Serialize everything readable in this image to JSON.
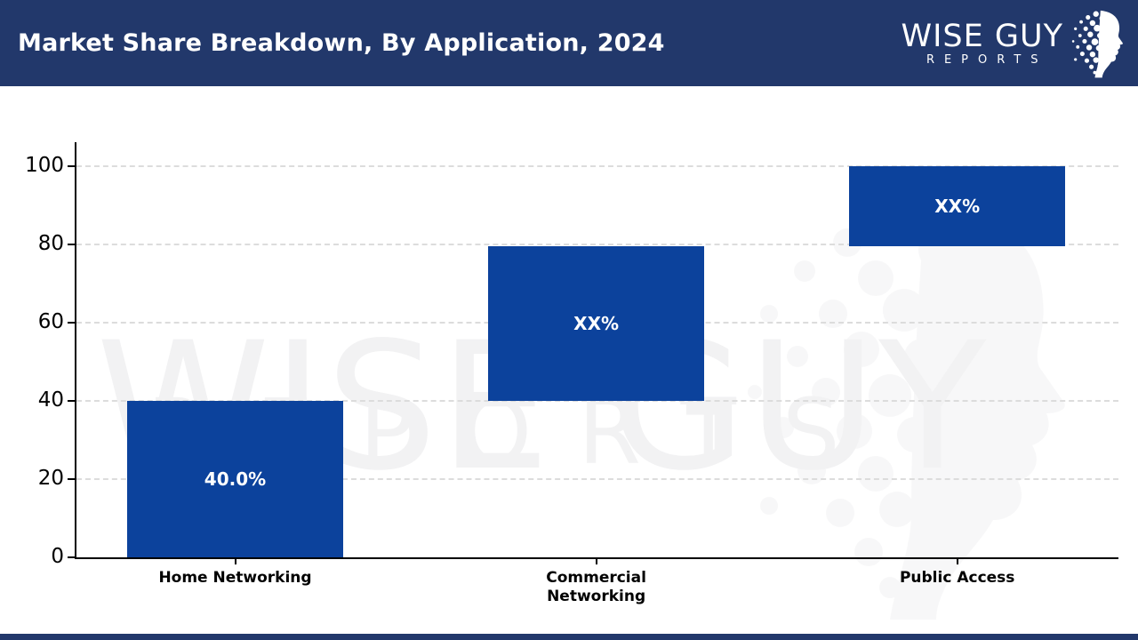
{
  "header": {
    "title": "Market Share Breakdown, By Application, 2024",
    "bg_color": "#22386b",
    "logo": {
      "line1": "WISE GUY",
      "line2": "REPORTS"
    }
  },
  "watermark": {
    "line1": "WISE GUY",
    "line2": "REPORTS"
  },
  "footer": {
    "bar_color": "#22386b"
  },
  "chart_data": {
    "type": "bar",
    "subtype": "waterfall",
    "title": "Market Share Breakdown, By Application, 2024",
    "categories": [
      "Home Networking",
      "Commercial Networking",
      "Public Access"
    ],
    "segments": [
      {
        "category": "Home Networking",
        "start": 0,
        "end": 40,
        "value_label": "40.0%"
      },
      {
        "category": "Commercial Networking",
        "start": 40,
        "end": 79.5,
        "value_label": "XX%"
      },
      {
        "category": "Public Access",
        "start": 79.5,
        "end": 100,
        "value_label": "XX%"
      }
    ],
    "yticks": [
      0,
      20,
      40,
      60,
      80,
      100
    ],
    "ylim": [
      0,
      106
    ],
    "grid": "horizontal-dashed",
    "legend": "none",
    "bar_color": "#0c429c",
    "bar_label_color": "#ffffff",
    "axis_color": "#000000",
    "gridline_color": "#dcdcdc"
  }
}
